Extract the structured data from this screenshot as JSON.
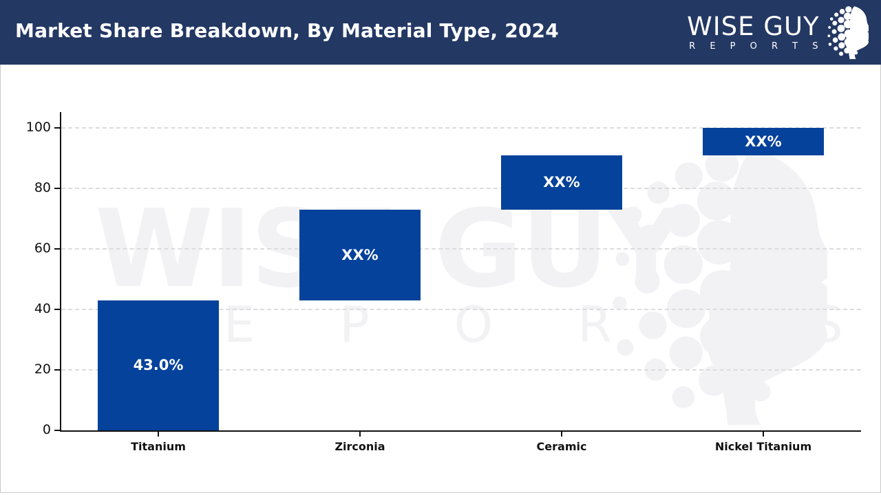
{
  "page": {
    "background": "#ffffff",
    "frame_border_color": "#c9c9c9"
  },
  "header": {
    "bg_color": "#233863",
    "title": "Market Share Breakdown, By Material Type, 2024",
    "logo": {
      "line1": "WISE GUY",
      "line2": "R E P O R T S"
    }
  },
  "watermark": {
    "line1": "WISE GUY",
    "line2": "R E P O R T S"
  },
  "chart_data": {
    "type": "bar",
    "variant": "waterfall",
    "title": "Market Share Breakdown, By Material Type, 2024",
    "categories": [
      "Titanium",
      "Zirconia",
      "Ceramic",
      "Nickel Titanium"
    ],
    "series": [
      {
        "name": "Market share (%)",
        "segments": [
          {
            "category": "Titanium",
            "start": 0,
            "end": 43,
            "label": "43.0%"
          },
          {
            "category": "Zirconia",
            "start": 43,
            "end": 73,
            "label": "XX%"
          },
          {
            "category": "Ceramic",
            "start": 73,
            "end": 91,
            "label": "XX%"
          },
          {
            "category": "Nickel Titanium",
            "start": 91,
            "end": 100,
            "label": "XX%"
          }
        ]
      }
    ],
    "yticks": [
      0,
      20,
      40,
      60,
      80,
      100
    ],
    "ylim": [
      0,
      105
    ],
    "xlabel": "",
    "ylabel": "",
    "grid": "horizontal-dashed",
    "legend": "none",
    "bar_color": "#04429B",
    "bar_label_color": "#ffffff",
    "axis_color": "#111111",
    "grid_color": "#dcdcdc"
  }
}
